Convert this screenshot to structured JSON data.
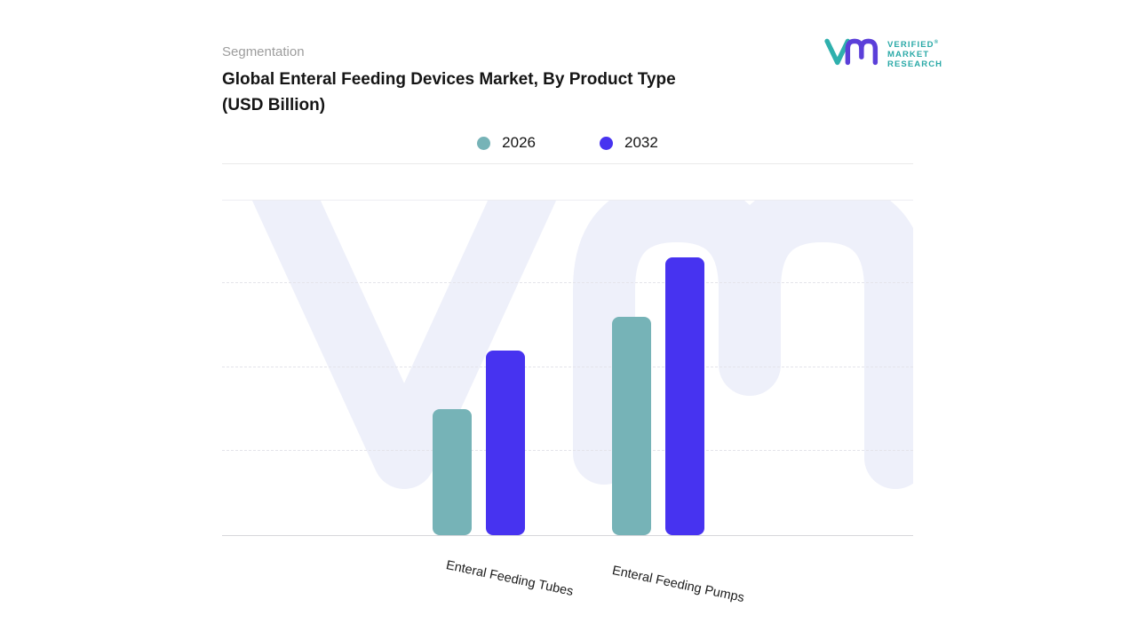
{
  "header": {
    "eyebrow": "Segmentation",
    "title_line1": "Global Enteral Feeding Devices Market, By Product Type",
    "title_line2": "(USD Billion)"
  },
  "logo": {
    "line1": "VERIFIED",
    "registered_mark": "®",
    "line2": "MARKET",
    "line3": "RESEARCH",
    "teal": "#2fb0ad",
    "purple": "#5b3fd9"
  },
  "colors": {
    "series_2026": "#76b3b7",
    "series_2032": "#4733f0",
    "watermark": "#eef0fa",
    "gridline": "#e4e4ea"
  },
  "chart_data": {
    "type": "bar",
    "title": "Global Enteral Feeding Devices Market, By Product Type (USD Billion)",
    "categories": [
      "Enteral Feeding Tubes",
      "Enteral Feeding Pumps"
    ],
    "series": [
      {
        "name": "2026",
        "color": "#76b3b7",
        "values": [
          1.5,
          2.6
        ]
      },
      {
        "name": "2032",
        "color": "#4733f0",
        "values": [
          2.2,
          3.3
        ]
      }
    ],
    "xlabel": "",
    "ylabel": "",
    "ylim": [
      0,
      4
    ],
    "y_axis_labels_visible": false,
    "gridline_values": [
      1,
      2,
      3
    ],
    "grid": "horizontal-dashed",
    "legend_position": "top-center"
  }
}
